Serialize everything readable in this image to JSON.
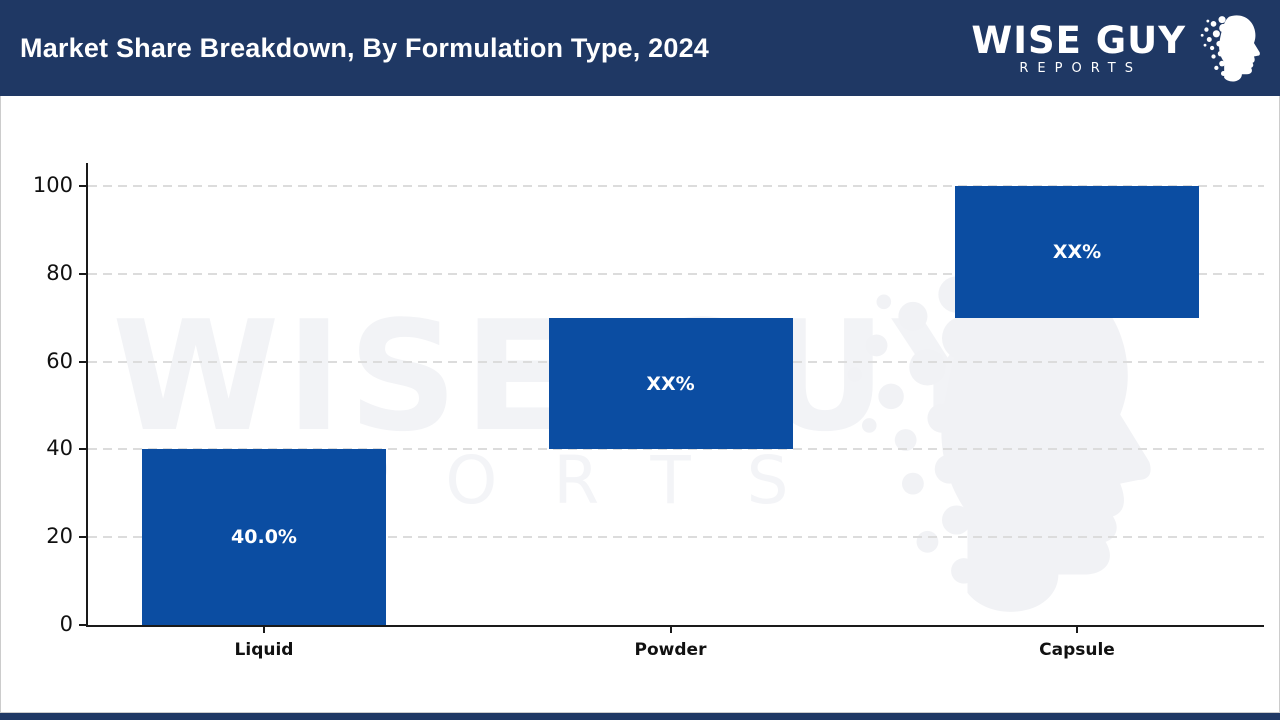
{
  "header": {
    "title": "Market Share Breakdown, By Formulation Type, 2024",
    "logo": {
      "line1": "WISE GUY",
      "line2": "REPORTS"
    }
  },
  "watermark": {
    "line1": "WISE GUY",
    "line2": "REPORTS"
  },
  "chart_data": {
    "type": "bar",
    "variant": "floating-waterfall",
    "title": "Market Share Breakdown, By Formulation Type, 2024",
    "categories": [
      "Liquid",
      "Powder",
      "Capsule"
    ],
    "segments": [
      {
        "category": "Liquid",
        "from": 0,
        "to": 40,
        "label": "40.0%"
      },
      {
        "category": "Powder",
        "from": 40,
        "to": 70,
        "label": "XX%"
      },
      {
        "category": "Capsule",
        "from": 70,
        "to": 100,
        "label": "XX%"
      }
    ],
    "yticks": [
      0,
      20,
      40,
      60,
      80,
      100
    ],
    "ylim": [
      0,
      105
    ],
    "xlabel": "",
    "ylabel": "",
    "grid": "horizontal-dashed",
    "legend": "none",
    "bar_color": "#0B4DA2",
    "bar_label_color": "#FFFFFF"
  },
  "colors": {
    "header_bg": "#1F3864",
    "footer_bg": "#1F3864",
    "bar": "#0B4DA2",
    "grid": "#DCDCDC",
    "axis": "#1A1A1A",
    "watermark": "#F2F3F6",
    "border": "#CCCCCC"
  }
}
